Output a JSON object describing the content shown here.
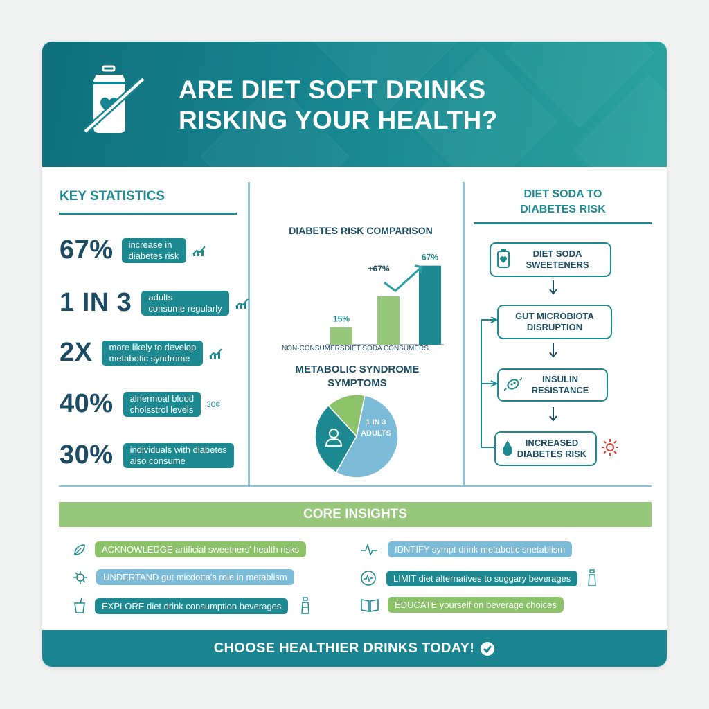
{
  "header": {
    "title_line1": "ARE DIET SOFT DRINKS",
    "title_line2": "RISKING YOUR HEALTH?"
  },
  "key_stats": {
    "title": "KEY STATISTICS",
    "items": [
      {
        "value": "67%",
        "line1": "increase in",
        "line2": "diabetes risk",
        "icon": "bar-chart-icon"
      },
      {
        "value": "1 IN 3",
        "line1": "adults",
        "line2": "consume regularly",
        "icon": "bar-chart-icon"
      },
      {
        "value": "2X",
        "line1": "more likely to develop",
        "line2": "metabotic syndrome",
        "icon": "bar-chart-icon"
      },
      {
        "value": "40%",
        "line1": "alnermoal blood",
        "line2": "cholsstrol levels",
        "mini": "30¢"
      },
      {
        "value": "30%",
        "line1": "individuals with diabetes",
        "line2": "also consume"
      }
    ]
  },
  "comparison": {
    "title": "DIABETES RISK COMPARISON",
    "labels": {
      "non": "NON-CONSUMERS",
      "diet": "DIET SODA CONSUMERS"
    }
  },
  "chart_data": {
    "type": "bar",
    "title": "DIABETES RISK COMPARISON",
    "categories": [
      "NON-CONSUMERS",
      "",
      "DIET SODA CONSUMERS"
    ],
    "values": [
      15,
      41,
      67
    ],
    "data_labels": [
      "15%",
      "",
      "67%"
    ],
    "annotation": "+67%",
    "ylim": [
      0,
      75
    ]
  },
  "metabolic": {
    "title_line1": "METABOLIC SYNDROME",
    "title_line2": "SYMPTOMS",
    "slice_line1": "1 IN 3",
    "slice_line2": "ADULTS",
    "slices": [
      {
        "value": 55,
        "color": "#7cbcd8"
      },
      {
        "value": 30,
        "color": "#1d8a92"
      },
      {
        "value": 15,
        "color": "#8cc26a"
      }
    ]
  },
  "flow": {
    "title_line1": "DIET SODA TO",
    "title_line2": "DIABETES RISK",
    "steps": [
      {
        "line1": "DIET SODA",
        "line2": "SWEETENERS",
        "icon": "soda-can-icon"
      },
      {
        "line1": "GUT MICROBIOTA",
        "line2": "DISRUPTION"
      },
      {
        "line1": "INSULIN",
        "line2": "RESISTANCE",
        "icon": "microbe-icon"
      },
      {
        "line1": "INCREASED",
        "line2": "DIABETES RISK",
        "icon": "drop-icon"
      }
    ]
  },
  "insights": {
    "title": "CORE INSIGHTS",
    "items": [
      {
        "text": "ACKNOWLEDGE artificial sweetners' health risks",
        "icon": "leaf-icon",
        "color": "#8cc26a"
      },
      {
        "text": "UNDERTAND gut micdotta's role in metablism",
        "icon": "microbe-icon",
        "color": "#7cbcd8"
      },
      {
        "text": "EXPLORE diet drink consumption beverages",
        "icon": "cup-icon",
        "color": "#1d8a92"
      },
      {
        "text": "IDNTIFY sympt drink metabotic snetablism",
        "icon": "heartbeat-icon",
        "color": "#7cbcd8"
      },
      {
        "text": "LIMIT diet alternatives to suggary beverages",
        "icon": "heart-pulse-icon",
        "color": "#1d8a92"
      },
      {
        "text": "EDUCATE yourself on beverage choices",
        "icon": "book-icon",
        "color": "#8cc26a"
      }
    ]
  },
  "footer": {
    "text": "CHOOSE HEALTHIER DRINKS TODAY!"
  }
}
